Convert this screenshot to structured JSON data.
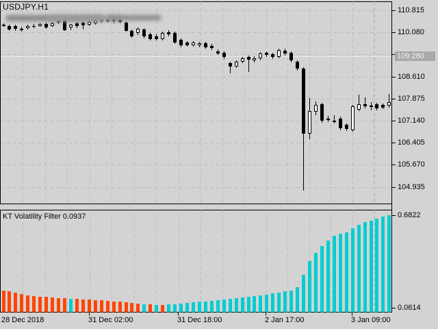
{
  "chart": {
    "symbol_label": "USDJPY.H1",
    "current_price": "109.280",
    "indicator_label": "KT Volatility Filter 0.0937",
    "indicator_max": "0.6822",
    "indicator_min": "0.0614",
    "time_axis_labels": [
      "28 Dec 2018",
      "31 Dec 02:00",
      "31 Dec 18:00",
      "2 Jan 17:00",
      "3 Jan 09:00"
    ],
    "price_axis_labels": [
      "110.815",
      "110.080",
      "108.610",
      "107.875",
      "107.140",
      "106.405",
      "105.670",
      "104.935"
    ],
    "watermark": "blurred-text-strip"
  },
  "colors": {
    "background": "#d3d3d3",
    "grid": "#bcbcbc",
    "panel_border": "#000000",
    "candle_bull": "#ffffff",
    "candle_bear": "#000000",
    "wick": "#000000",
    "bar_up": "#00ced1",
    "bar_down": "#ff4500",
    "price_line": "#ebebeb",
    "tag_bg": "#a9a9a9",
    "tag_text": "#f2f2f2",
    "text": "#000000"
  },
  "chart_data": [
    {
      "type": "candlestick",
      "title": "USDJPY.H1",
      "y_ticks": [
        110.815,
        110.08,
        109.345,
        108.61,
        107.875,
        107.14,
        106.405,
        105.67,
        104.935
      ],
      "y_tick_visible": [
        true,
        true,
        false,
        true,
        true,
        true,
        true,
        true,
        true
      ],
      "current_price": 109.28,
      "x_labels": [
        "28 Dec 2018",
        "31 Dec 02:00",
        "31 Dec 18:00",
        "2 Jan 17:00",
        "3 Jan 09:00"
      ],
      "x_tick_bars": [
        0,
        14,
        28.5,
        42.8,
        56.9
      ],
      "ohlc": [
        [
          110.33,
          110.38,
          110.27,
          110.29
        ],
        [
          110.3,
          110.34,
          110.13,
          110.17
        ],
        [
          110.28,
          110.33,
          110.12,
          110.21
        ],
        [
          110.15,
          110.26,
          110.11,
          110.21
        ],
        [
          110.22,
          110.34,
          110.18,
          110.3
        ],
        [
          110.3,
          110.35,
          110.23,
          110.26
        ],
        [
          110.29,
          110.39,
          110.26,
          110.36
        ],
        [
          110.35,
          110.4,
          110.19,
          110.24
        ],
        [
          110.3,
          110.42,
          110.26,
          110.38
        ],
        [
          110.4,
          110.49,
          110.36,
          110.47
        ],
        [
          110.47,
          110.52,
          110.12,
          110.15
        ],
        [
          110.24,
          110.36,
          110.15,
          110.33
        ],
        [
          110.38,
          110.43,
          110.22,
          110.29
        ],
        [
          110.4,
          110.45,
          110.17,
          110.31
        ],
        [
          110.34,
          110.47,
          110.29,
          110.43
        ],
        [
          110.38,
          110.54,
          110.34,
          110.47
        ],
        [
          110.44,
          110.55,
          110.4,
          110.51
        ],
        [
          110.5,
          110.55,
          110.41,
          110.46
        ],
        [
          110.51,
          110.55,
          110.39,
          110.44
        ],
        [
          110.5,
          110.54,
          110.37,
          110.42
        ],
        [
          110.4,
          110.45,
          110.1,
          110.13
        ],
        [
          110.13,
          110.18,
          109.9,
          109.95
        ],
        [
          110.06,
          110.24,
          110.0,
          110.2
        ],
        [
          110.18,
          110.23,
          109.89,
          109.95
        ],
        [
          110.02,
          110.07,
          109.81,
          109.86
        ],
        [
          109.95,
          110.01,
          109.8,
          109.86
        ],
        [
          109.86,
          110.11,
          109.81,
          110.06
        ],
        [
          110.08,
          110.15,
          109.95,
          110.01
        ],
        [
          110.06,
          110.11,
          109.69,
          109.74
        ],
        [
          109.83,
          109.89,
          109.59,
          109.65
        ],
        [
          109.74,
          109.79,
          109.6,
          109.65
        ],
        [
          109.65,
          109.79,
          109.61,
          109.74
        ],
        [
          109.65,
          109.77,
          109.59,
          109.72
        ],
        [
          109.72,
          109.77,
          109.53,
          109.58
        ],
        [
          109.63,
          109.69,
          109.49,
          109.56
        ],
        [
          109.45,
          109.51,
          109.32,
          109.38
        ],
        [
          109.4,
          109.45,
          109.2,
          109.26
        ],
        [
          109.06,
          109.11,
          108.71,
          108.94
        ],
        [
          108.94,
          109.16,
          108.89,
          109.1
        ],
        [
          109.1,
          109.26,
          109.05,
          109.21
        ],
        [
          109.26,
          109.31,
          108.76,
          109.17
        ],
        [
          109.15,
          109.28,
          109.09,
          109.22
        ],
        [
          109.21,
          109.43,
          109.16,
          109.38
        ],
        [
          109.4,
          109.45,
          109.27,
          109.33
        ],
        [
          109.35,
          109.4,
          109.2,
          109.26
        ],
        [
          109.26,
          109.54,
          109.21,
          109.49
        ],
        [
          109.47,
          109.54,
          109.31,
          109.38
        ],
        [
          109.4,
          109.45,
          109.08,
          109.15
        ],
        [
          109.1,
          109.15,
          108.8,
          108.87
        ],
        [
          108.87,
          108.93,
          104.81,
          106.71
        ],
        [
          106.71,
          107.89,
          106.52,
          107.46
        ],
        [
          107.44,
          107.78,
          107.33,
          107.66
        ],
        [
          107.69,
          107.74,
          107.07,
          107.14
        ],
        [
          107.21,
          107.31,
          107.09,
          107.17
        ],
        [
          107.14,
          107.33,
          107.04,
          107.09
        ],
        [
          107.21,
          107.27,
          106.83,
          106.89
        ],
        [
          107.0,
          107.06,
          106.79,
          106.87
        ],
        [
          106.82,
          107.67,
          106.77,
          107.62
        ],
        [
          107.5,
          108.01,
          107.45,
          107.69
        ],
        [
          107.69,
          107.92,
          107.56,
          107.62
        ],
        [
          107.64,
          107.76,
          107.49,
          107.6
        ],
        [
          107.69,
          107.74,
          107.49,
          107.55
        ],
        [
          107.66,
          107.72,
          107.52,
          107.57
        ],
        [
          107.64,
          108.03,
          107.58,
          107.76
        ]
      ]
    },
    {
      "type": "bar",
      "title": "KT Volatility Filter",
      "current_value": 0.0937,
      "ylim": [
        0.0614,
        0.6822
      ],
      "legend_position": "none",
      "values": [
        0.178,
        0.172,
        0.161,
        0.152,
        0.146,
        0.141,
        0.137,
        0.134,
        0.131,
        0.128,
        0.126,
        0.122,
        0.12,
        0.118,
        0.116,
        0.114,
        0.112,
        0.109,
        0.105,
        0.101,
        0.097,
        0.093,
        0.089,
        0.086,
        0.084,
        0.082,
        0.081,
        0.083,
        0.086,
        0.089,
        0.093,
        0.097,
        0.101,
        0.105,
        0.109,
        0.113,
        0.117,
        0.121,
        0.125,
        0.129,
        0.134,
        0.139,
        0.145,
        0.151,
        0.157,
        0.163,
        0.17,
        0.177,
        0.199,
        0.282,
        0.374,
        0.429,
        0.475,
        0.512,
        0.544,
        0.558,
        0.567,
        0.595,
        0.618,
        0.636,
        0.646,
        0.659,
        0.672,
        0.6822
      ],
      "states": "dddddddddddudddddddddddududuuuuuuuuuuuuuuuuuuuuuuuuuuuuuuuuuuuuuuuu"
    }
  ]
}
